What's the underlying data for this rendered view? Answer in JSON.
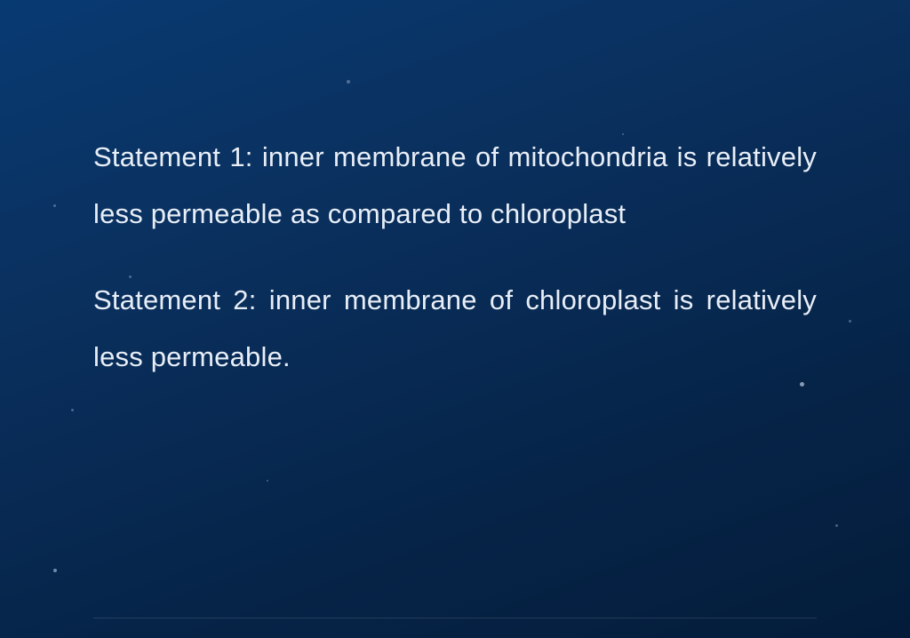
{
  "slide": {
    "background": {
      "gradient_start": "#083a72",
      "gradient_mid1": "#0a3160",
      "gradient_mid2": "#062448",
      "gradient_end": "#041c3a"
    },
    "text_color": "#e8eef7",
    "font_size_pt": 23,
    "line_height": 2.05,
    "statements": [
      {
        "label": "Statement 1:",
        "text": "Statement 1: inner membrane of mitochondria is relatively less permeable as compared to chloroplast"
      },
      {
        "label": "Statement 2:",
        "text": "Statement 2: inner membrane of chloroplast is relatively less permeable."
      }
    ],
    "divider_color": "rgba(255,255,255,0.12)"
  }
}
